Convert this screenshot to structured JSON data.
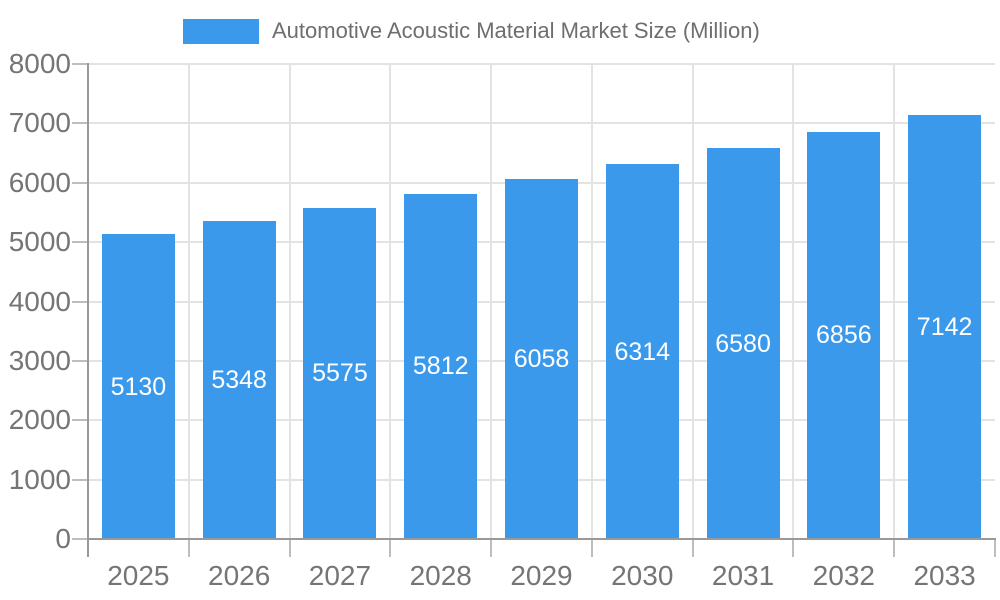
{
  "chart_data": {
    "type": "bar",
    "title": "Automotive Acoustic Material Market Size (Million)",
    "categories": [
      "2025",
      "2026",
      "2027",
      "2028",
      "2029",
      "2030",
      "2031",
      "2032",
      "2033"
    ],
    "series": [
      {
        "name": "Automotive Acoustic Material Market Size (Million)",
        "values": [
          5130,
          5348,
          5575,
          5812,
          6058,
          6314,
          6580,
          6856,
          7142
        ]
      }
    ],
    "xlabel": "",
    "ylabel": "",
    "ylim": [
      0,
      8000
    ],
    "ytick_step": 1000,
    "ytick_labels": [
      "0",
      "1000",
      "2000",
      "3000",
      "4000",
      "5000",
      "6000",
      "7000",
      "8000"
    ],
    "grid": true,
    "legend_position": "top",
    "value_label_position": "inside-center"
  },
  "colors": {
    "bar": "#3B99EC",
    "value_label": "#FFFFFF",
    "gridline": "#E3E3E3",
    "tick_mark": "#BDBDBD",
    "axis_line": "#999999",
    "tick_label": "#757575",
    "title": "#6E6E6E",
    "background": "#FFFFFF"
  }
}
